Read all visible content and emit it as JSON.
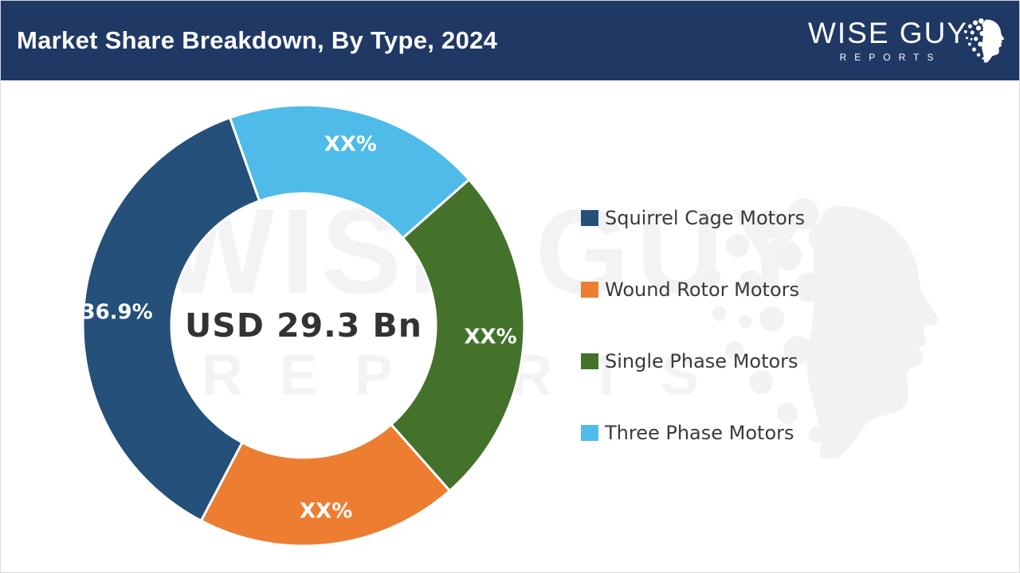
{
  "header": {
    "title": "Market Share Breakdown, By Type, 2024",
    "logo": {
      "line1": "WISE GUY",
      "line2": "REPORTS"
    }
  },
  "chart_data": {
    "type": "pie",
    "subtype": "donut",
    "title": "Market Share Breakdown, By Type, 2024",
    "center_label": "USD 29.3 Bn",
    "categories": [
      "Squirrel Cage Motors",
      "Wound Rotor Motors",
      "Single Phase Motors",
      "Three Phase Motors"
    ],
    "values": [
      36.9,
      19.2,
      25.0,
      18.9
    ],
    "display_labels": [
      "36.9%",
      "XX%",
      "XX%",
      "XX%"
    ],
    "colors": [
      "#24507A",
      "#ED7D31",
      "#44722B",
      "#4FBBE9"
    ],
    "start_angle": 109.5,
    "direction": "counterclockwise",
    "legend_position": "right",
    "label_color": "#ffffff",
    "center_label_color": "#333333"
  },
  "watermark": {
    "line1": "WISE GUY",
    "line2": "REPORTS"
  },
  "theme": {
    "header_bg": "#203864",
    "page_bg": "#ffffff",
    "border": "#d9d9d9",
    "legend_text": "#3a3a3a",
    "watermark_color": "#f3f3f5"
  }
}
